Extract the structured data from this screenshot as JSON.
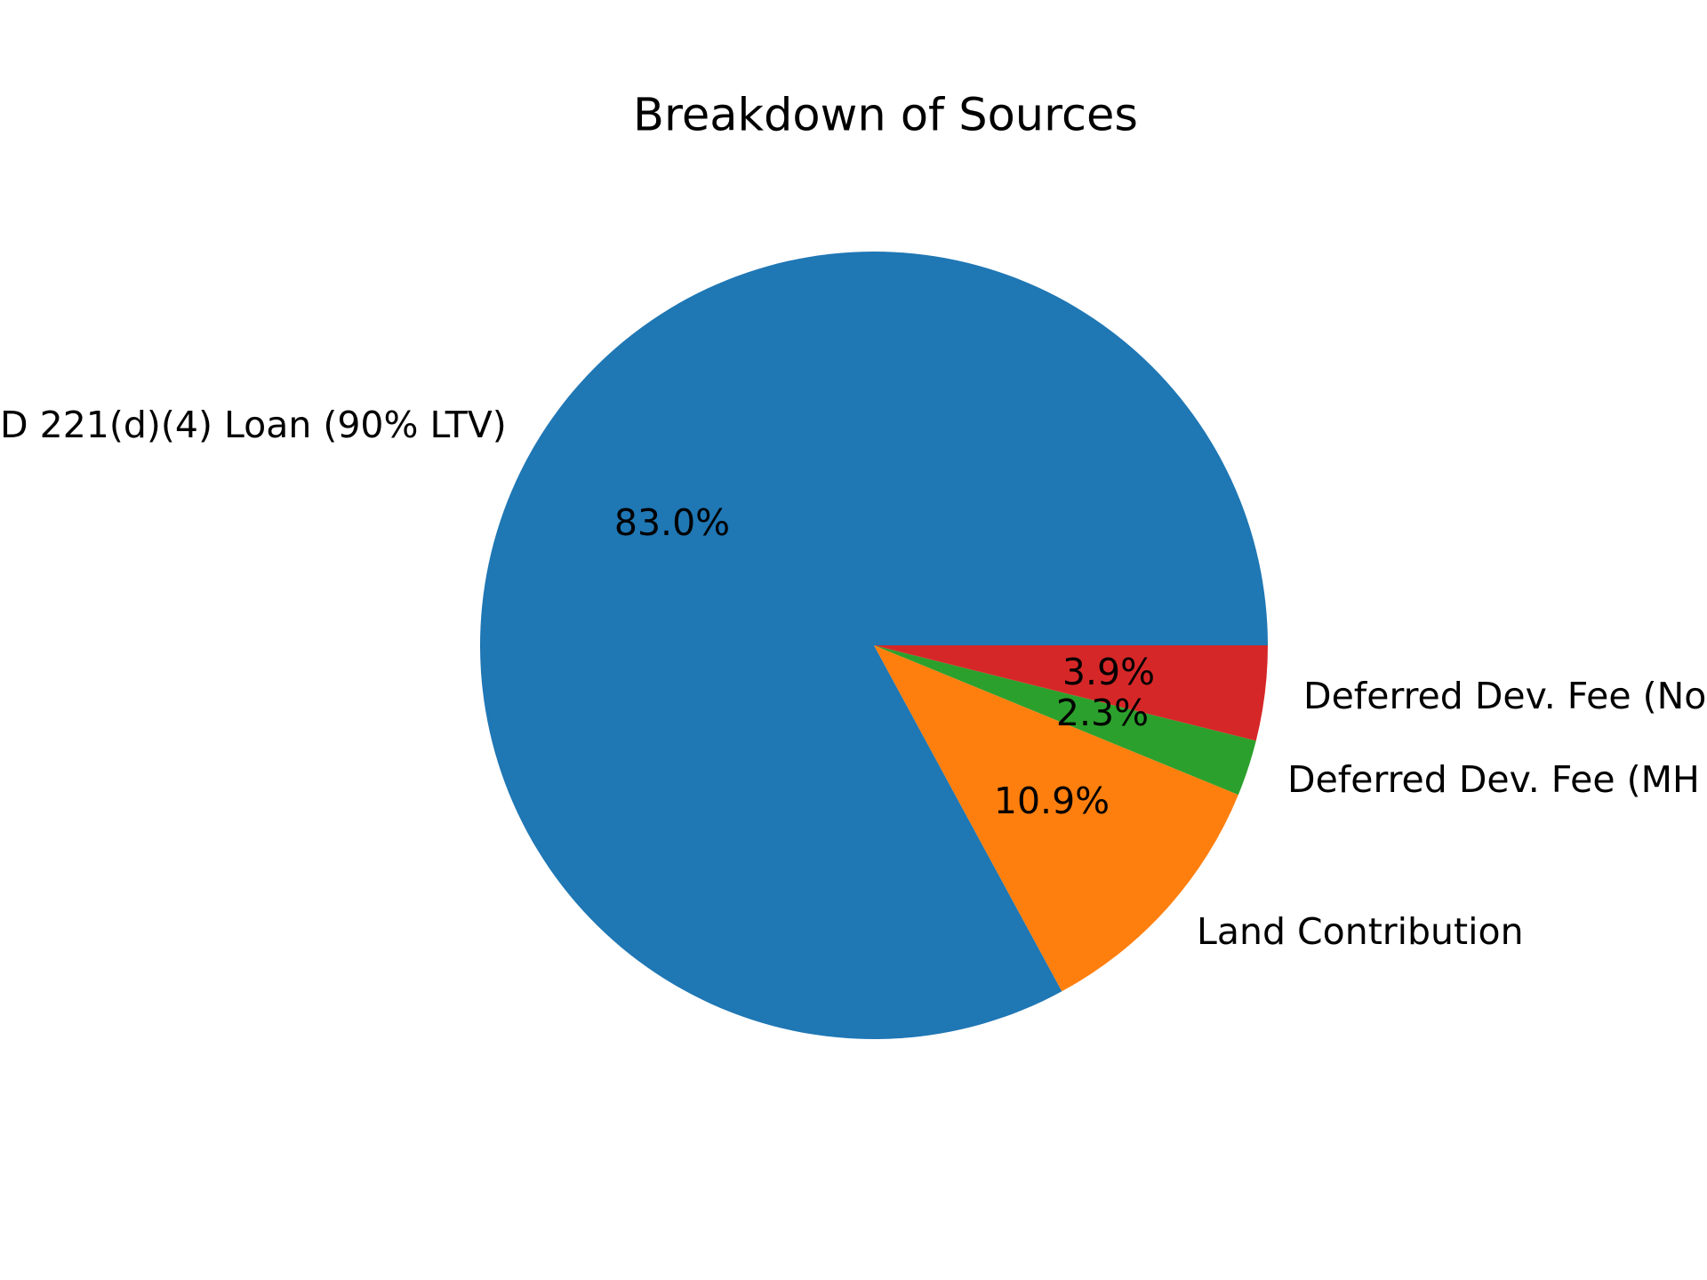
{
  "chart_data": {
    "type": "pie",
    "title": "Breakdown of Sources",
    "start_angle_deg": 0,
    "direction": "counterclockwise",
    "legend": "none",
    "background_color": "#ffffff",
    "text_color": "#000000",
    "slices": [
      {
        "label": "D 221(d)(4) Loan (90% LTV)",
        "label_clipped": "left edge of image",
        "value_pct": 83.0,
        "pct_label": "83.0%",
        "color": "#1f77b4"
      },
      {
        "label": "Land Contribution",
        "label_clipped": "none",
        "value_pct": 10.9,
        "pct_label": "10.9%",
        "color": "#ff7f0e"
      },
      {
        "label": "Deferred Dev. Fee (MH",
        "label_clipped": "right edge of image",
        "value_pct": 2.3,
        "pct_label": "2.3%",
        "color": "#2ca02c"
      },
      {
        "label": "Deferred Dev. Fee (No",
        "label_clipped": "right edge of image",
        "value_pct": 3.9,
        "pct_label": "3.9%",
        "color": "#d62728"
      }
    ]
  }
}
